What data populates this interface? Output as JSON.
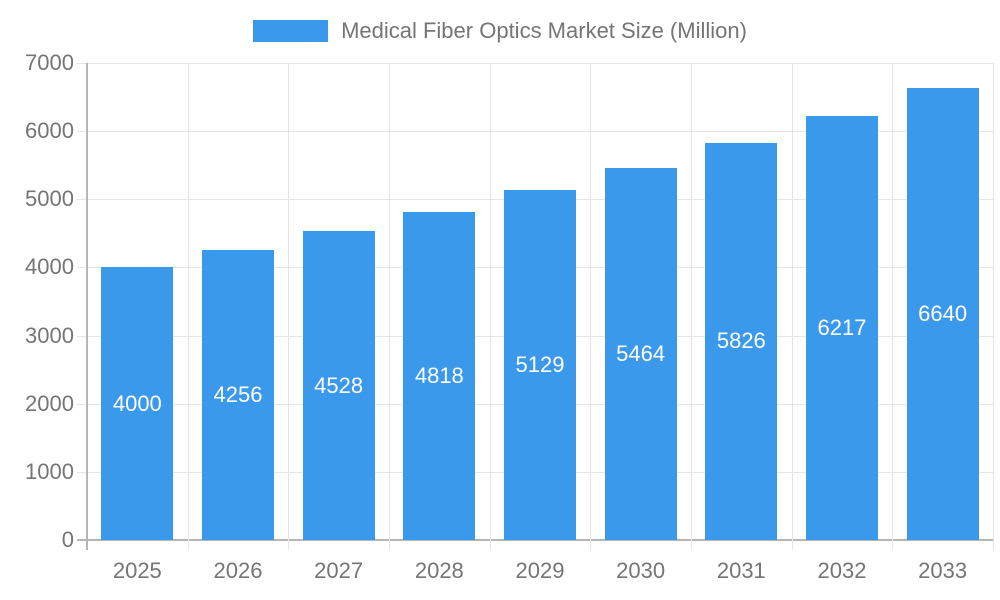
{
  "legend": {
    "label": "Medical Fiber Optics Market Size (Million)"
  },
  "chart_data": {
    "type": "bar",
    "title": "Medical Fiber Optics Market Size (Million)",
    "categories": [
      "2025",
      "2026",
      "2027",
      "2028",
      "2029",
      "2030",
      "2031",
      "2032",
      "2033"
    ],
    "values": [
      4000,
      4256,
      4528,
      4818,
      5129,
      5464,
      5826,
      6217,
      6640
    ],
    "yticks": [
      0,
      1000,
      2000,
      3000,
      4000,
      5000,
      6000,
      7000
    ],
    "ylim": [
      0,
      7000
    ],
    "xlabel": "",
    "ylabel": "",
    "grid": true,
    "legend_position": "top",
    "bar_labels_shown": true
  },
  "colors": {
    "bar": "#3B99EC",
    "grid": "#e5e5e5",
    "axis": "#b5b5b5",
    "text": "#757575",
    "bar_label": "#ffffff",
    "background": "#ffffff"
  }
}
